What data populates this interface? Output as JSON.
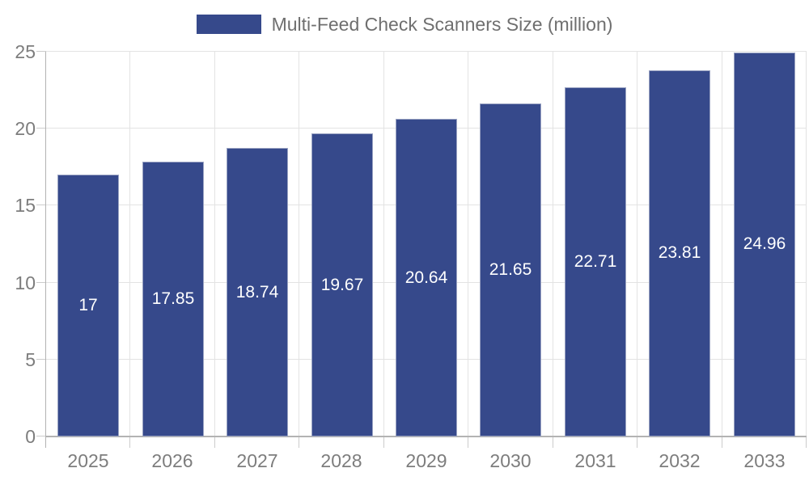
{
  "legend": {
    "label": "Multi-Feed Check Scanners Size (million)"
  },
  "colors": {
    "bar_fill": "#36498b",
    "bar_border": "#9aa3c2",
    "grid_line": "#e3e3e3",
    "axis_line": "#b3b3b3",
    "tick_mark": "#cccccc",
    "axis_text": "#7d7d7d",
    "legend_text": "#6f6f6f",
    "value_text": "#ffffff",
    "background": "#ffffff"
  },
  "chart_data": {
    "type": "bar",
    "title": "Multi-Feed Check Scanners Size (million)",
    "categories": [
      "2025",
      "2026",
      "2027",
      "2028",
      "2029",
      "2030",
      "2031",
      "2032",
      "2033"
    ],
    "values": [
      17,
      17.85,
      18.74,
      19.67,
      20.64,
      21.65,
      22.71,
      23.81,
      24.96
    ],
    "value_labels": [
      "17",
      "17.85",
      "18.74",
      "19.67",
      "20.64",
      "21.65",
      "22.71",
      "23.81",
      "24.96"
    ],
    "xlabel": "",
    "ylabel": "",
    "ylim": [
      0,
      25
    ],
    "yticks": [
      0,
      5,
      10,
      15,
      20,
      25
    ],
    "grid": true,
    "legend_position": "top",
    "value_label_position": "center-of-bar"
  }
}
